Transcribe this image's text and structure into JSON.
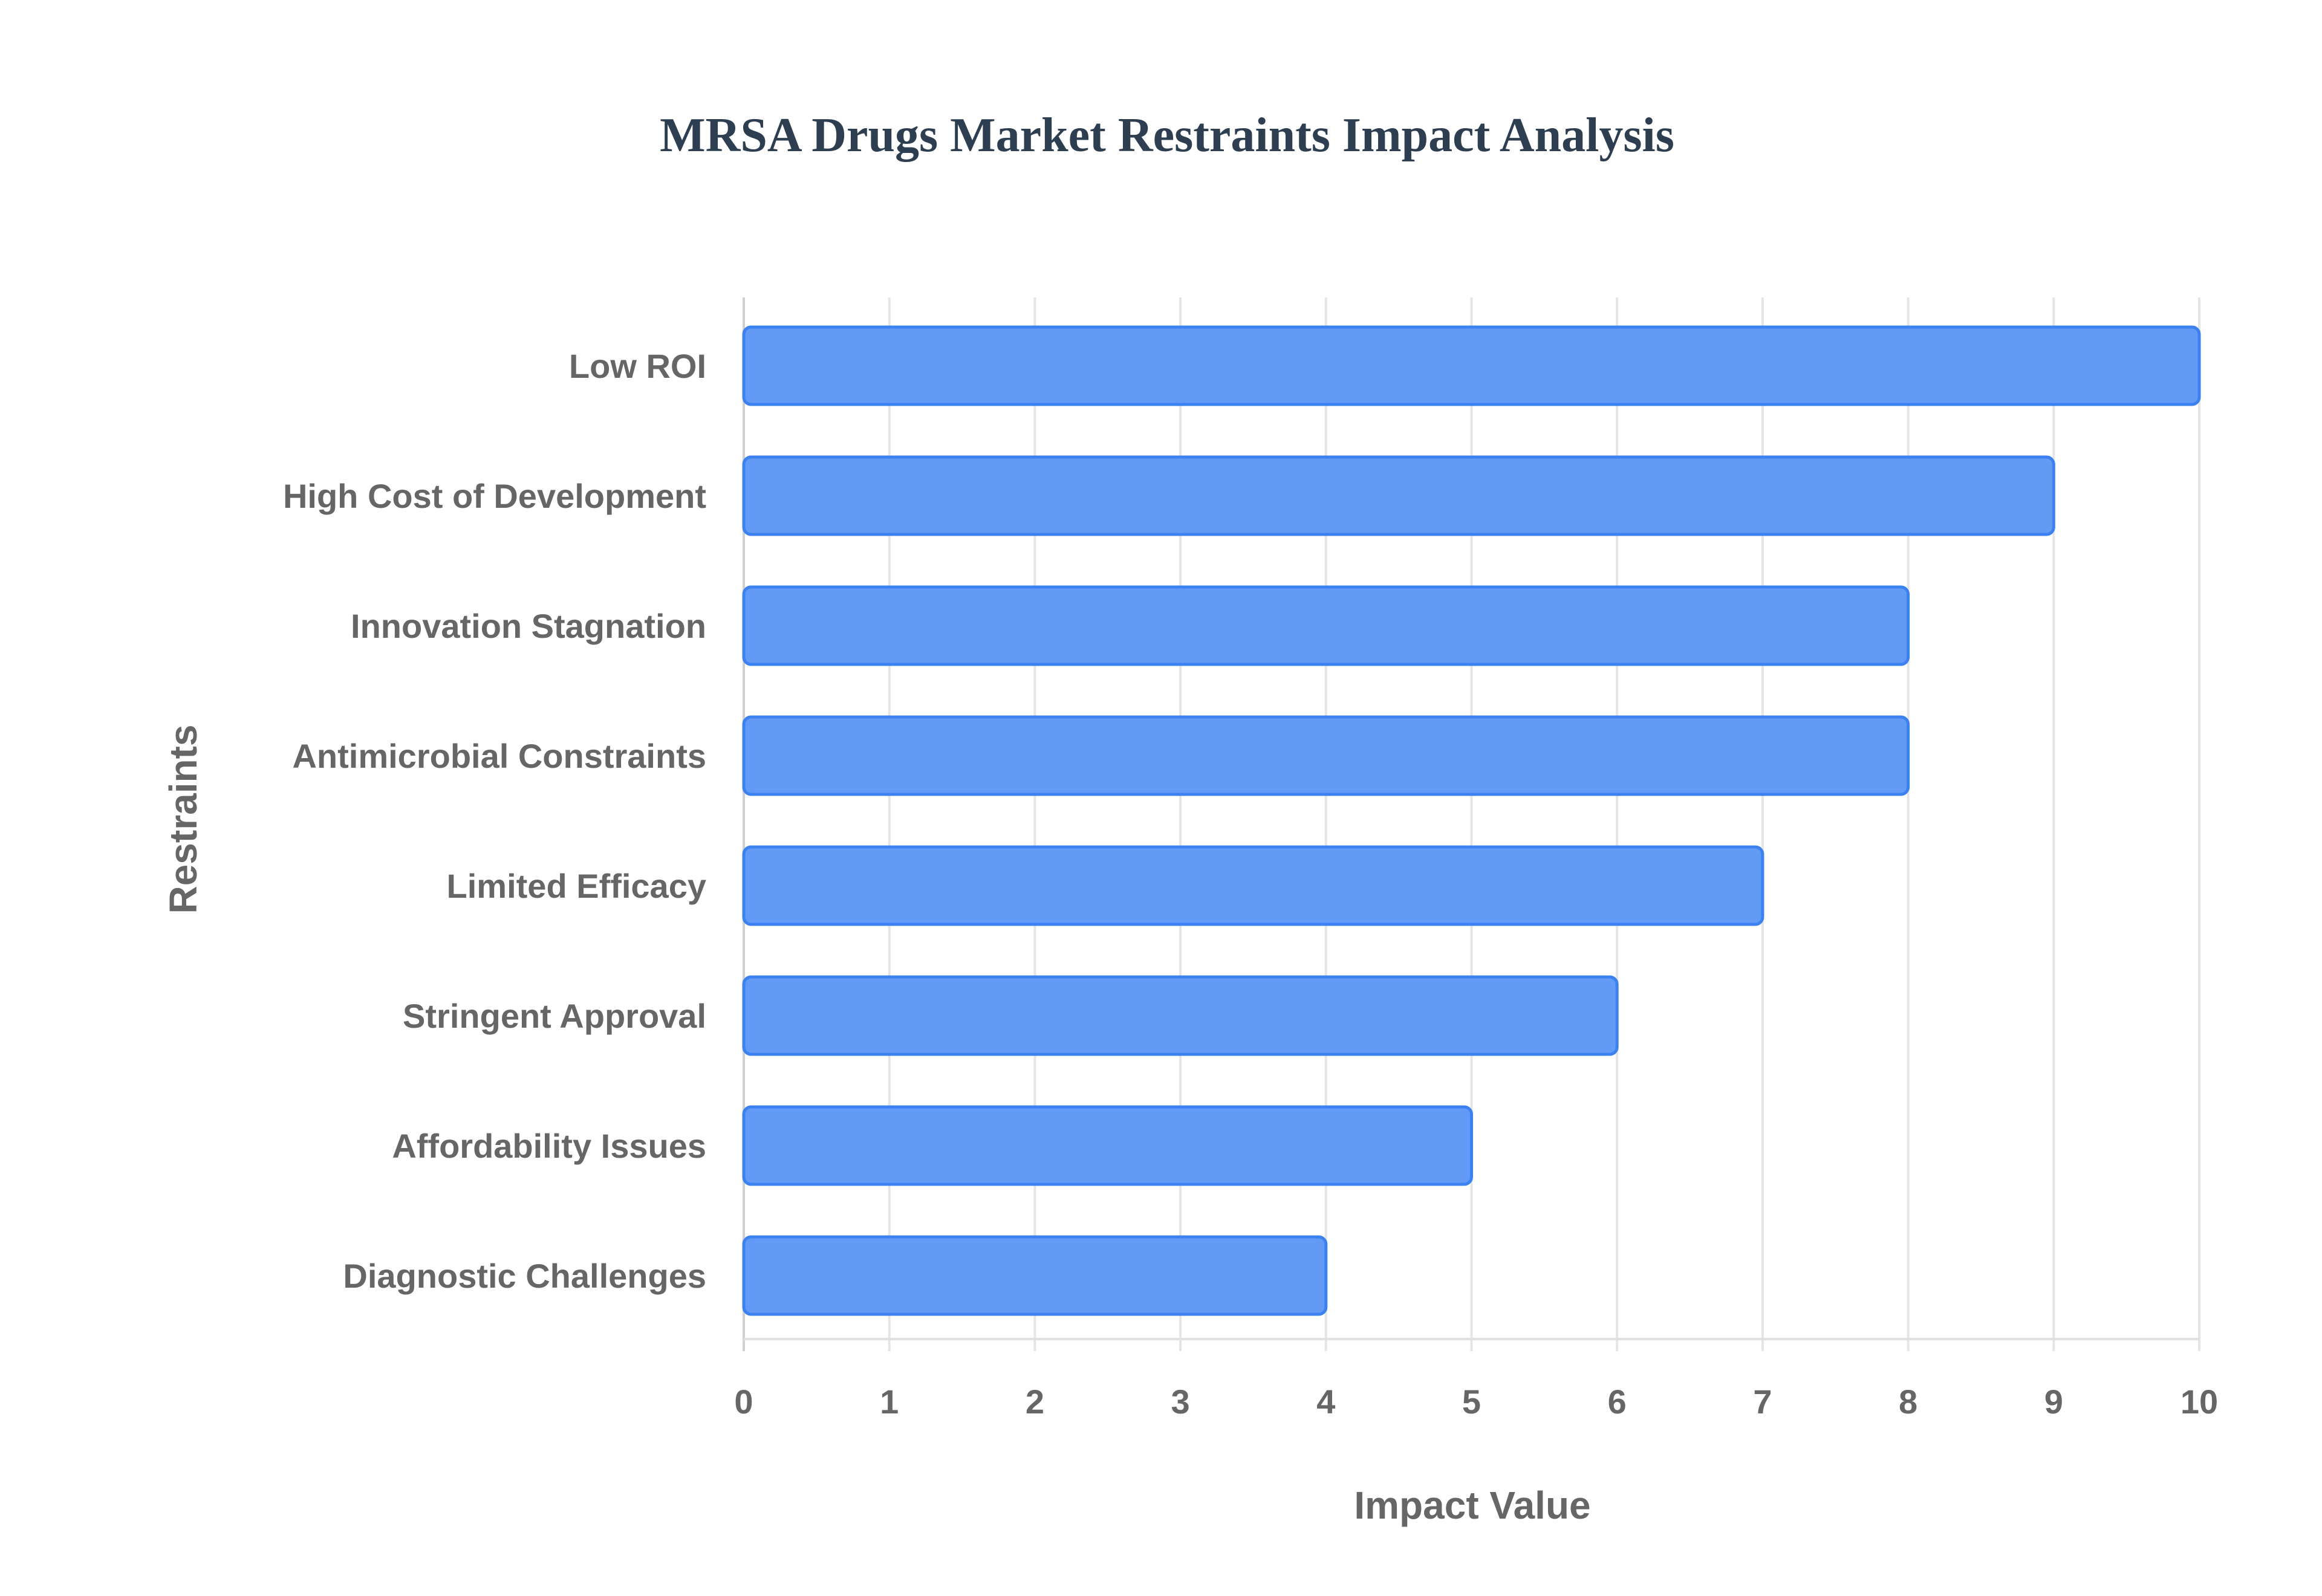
{
  "chart_data": {
    "type": "bar",
    "orientation": "horizontal",
    "title": "MRSA Drugs Market Restraints Impact Analysis",
    "xlabel": "Impact Value",
    "ylabel": "Restraints",
    "categories": [
      "Low ROI",
      "High Cost of Development",
      "Innovation Stagnation",
      "Antimicrobial Constraints",
      "Limited Efficacy",
      "Stringent Approval",
      "Affordability Issues",
      "Diagnostic Challenges"
    ],
    "values": [
      10,
      9,
      8,
      8,
      7,
      6,
      5,
      4
    ],
    "xlim": [
      0,
      10
    ],
    "xticks": [
      0,
      1,
      2,
      3,
      4,
      5,
      6,
      7,
      8,
      9,
      10
    ],
    "grid": true,
    "colors": {
      "fill": "#639af5",
      "stroke": "#3b82f0",
      "grid": "#e5e5e5",
      "text": "#666666",
      "title": "#2c3e50"
    }
  }
}
